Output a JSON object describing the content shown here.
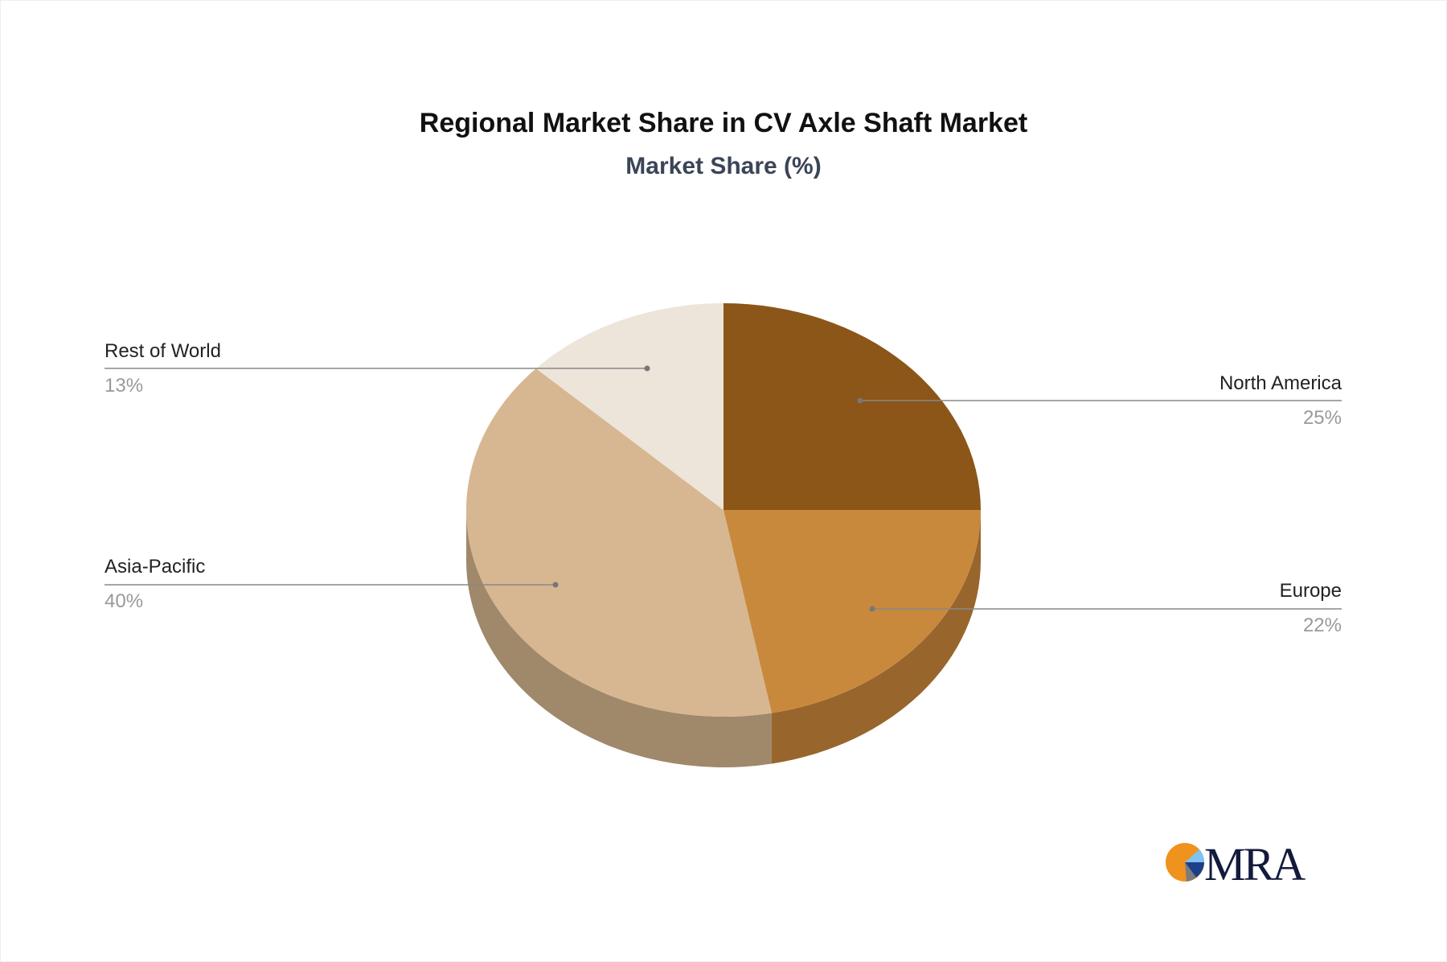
{
  "chart_data": {
    "type": "pie",
    "title": "Regional Market Share in CV Axle Shaft Market",
    "subtitle": "Market Share (%)",
    "style": "3d",
    "slices": [
      {
        "label": "North America",
        "value": 25,
        "pct_label": "25%",
        "color": "#8b5618",
        "side_color": "#6f4513",
        "label_side": "right"
      },
      {
        "label": "Europe",
        "value": 22,
        "pct_label": "22%",
        "color": "#c9893d",
        "side_color": "#98662c",
        "label_side": "right"
      },
      {
        "label": "Asia-Pacific",
        "value": 40,
        "pct_label": "40%",
        "color": "#d7b791",
        "side_color": "#a0886b",
        "label_side": "left"
      },
      {
        "label": "Rest of World",
        "value": 13,
        "pct_label": "13%",
        "color": "#ede4da",
        "side_color": "#bdb3a8",
        "label_side": "left"
      }
    ]
  },
  "logo": {
    "text": "MRA"
  }
}
